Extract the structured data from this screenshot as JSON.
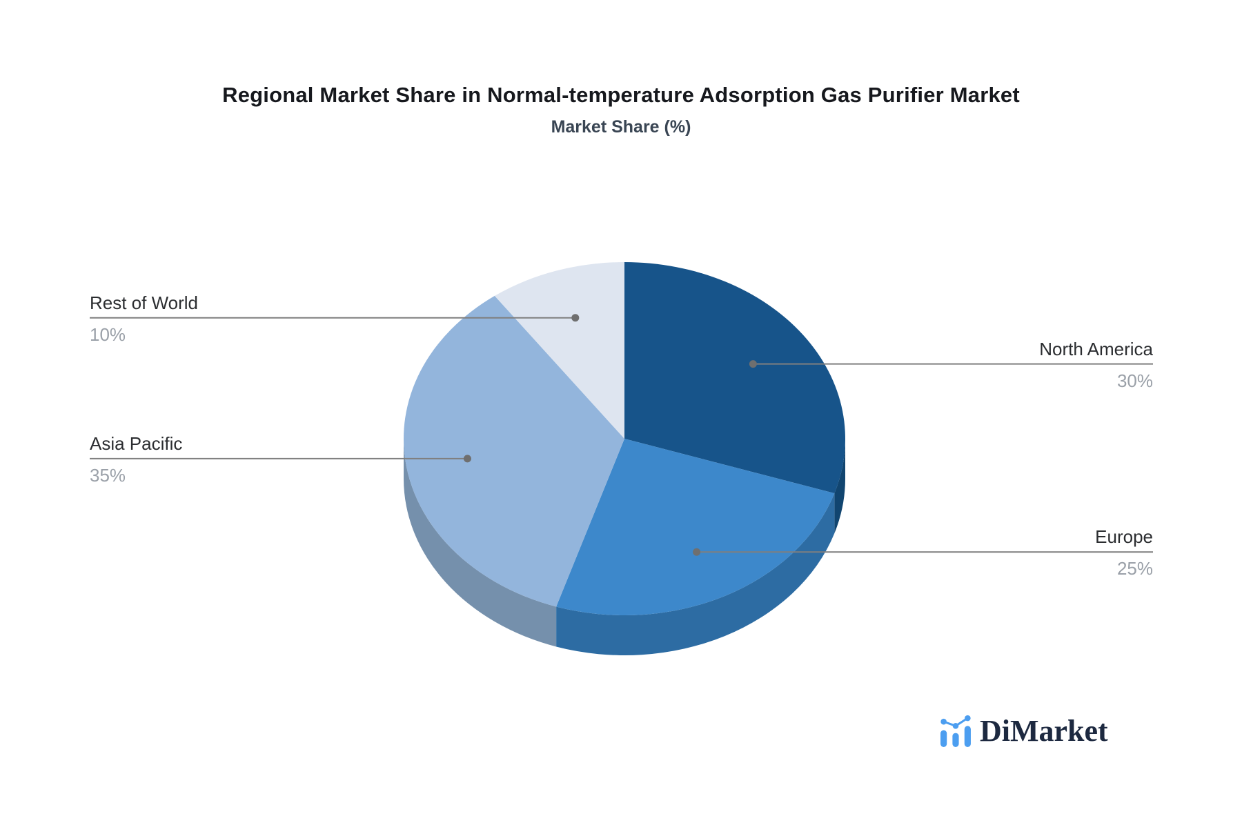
{
  "header": {
    "title": "Regional Market Share in Normal-temperature Adsorption Gas Purifier Market",
    "subtitle": "Market Share (%)"
  },
  "brand": {
    "name": "DiMarket",
    "icon": "bar-chart-icon",
    "text_color": "#1D2940",
    "icon_color": "#4C9EF0"
  },
  "chart_data": {
    "type": "pie",
    "title": "Regional Market Share in Normal-temperature Adsorption Gas Purifier Market",
    "subtitle": "Market Share (%)",
    "unit": "%",
    "effect_3d": true,
    "start_angle_deg": 0,
    "direction": "clockwise",
    "legend_position": "leader-labels",
    "slices": [
      {
        "label": "North America",
        "value": 30,
        "color": "#17548A",
        "side_color": "#114570",
        "label_side": "right"
      },
      {
        "label": "Europe",
        "value": 25,
        "color": "#3D88CB",
        "side_color": "#2D6CA3",
        "label_side": "right"
      },
      {
        "label": "Asia Pacific",
        "value": 35,
        "color": "#93B5DC",
        "side_color": "#7590AC",
        "label_side": "left"
      },
      {
        "label": "Rest of World",
        "value": 10,
        "color": "#DEE5F0",
        "side_color": "#B8C4D6",
        "label_side": "left"
      }
    ],
    "leader_line_color": "#7F7F7F",
    "leader_dot_color": "#6F6F6F",
    "label_color": "#2B2D30",
    "value_color": "#9AA0A8"
  }
}
